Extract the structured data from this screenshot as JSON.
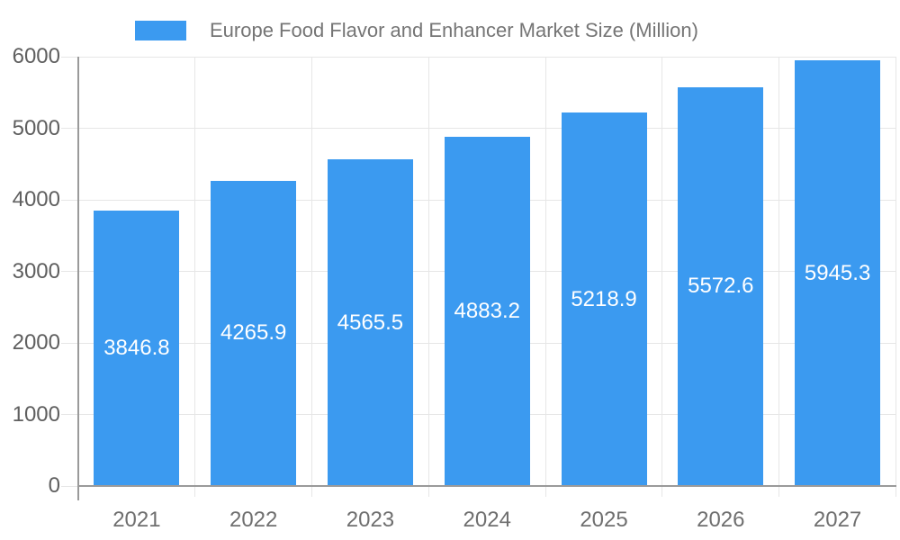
{
  "legend": {
    "label": "Europe Food Flavor and Enhancer Market Size (Million)",
    "swatch_color": "#3b9af0"
  },
  "chart_data": {
    "type": "bar",
    "title": "Europe Food Flavor and Enhancer Market Size (Million)",
    "categories": [
      "2021",
      "2022",
      "2023",
      "2024",
      "2025",
      "2026",
      "2027"
    ],
    "values": [
      3846.8,
      4265.9,
      4565.5,
      4883.2,
      5218.9,
      5572.6,
      5945.3
    ],
    "value_labels": [
      "3846.8",
      "4265.9",
      "4565.5",
      "4883.2",
      "5218.9",
      "5572.6",
      "5945.3"
    ],
    "xlabel": "",
    "ylabel": "",
    "ylim": [
      0,
      6000
    ],
    "yticks": [
      0,
      1000,
      2000,
      3000,
      4000,
      5000,
      6000
    ],
    "grid": true,
    "legend_position": "top",
    "bar_color": "#3b9af0",
    "value_label_color": "#ffffff"
  },
  "colors": {
    "grid": "#e6e6e6",
    "axis": "#9a9a9a",
    "y_tick_label": "#5f5f5f",
    "x_tick_label": "#6f6f6f",
    "legend_text": "#757575",
    "background": "#ffffff"
  }
}
